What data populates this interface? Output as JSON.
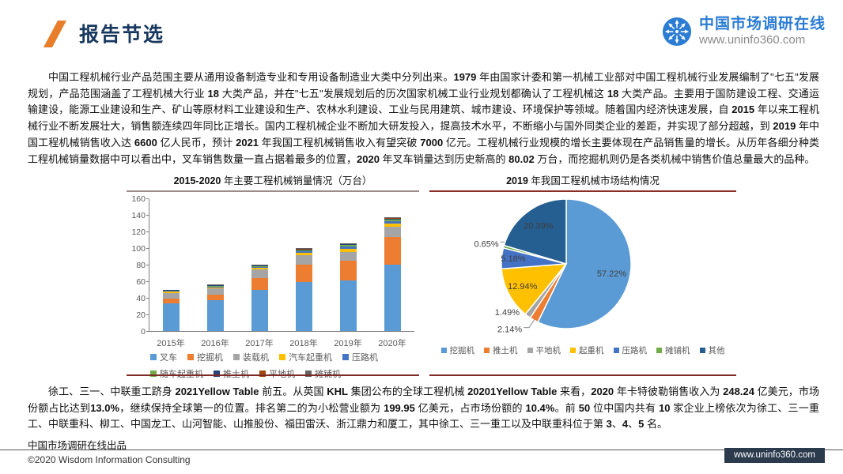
{
  "header": {
    "title": "报告节选",
    "brand_name": "中国市场调研在线",
    "brand_url": "www.uninfo360.com"
  },
  "colors": {
    "accent_orange": "#E87D2B",
    "title_navy": "#17375E",
    "brand_blue": "#2B7CD3",
    "bar_title_rule": "#9C8B88",
    "pie_title_rule": "#8B2E28",
    "card_bottom_rule": "#7E2B26",
    "footer_box_navy": "#2C3A4D"
  },
  "paragraphs": {
    "p1": [
      {
        "t": "中国工程机械行业产品范围主要从通用设备制造专业和专用设备制造业大类中分列出来。"
      },
      {
        "t": "1979",
        "b": 1
      },
      {
        "t": " 年由国家计委和第一机械工业部对中国工程机械行业发展编制了\"七五\"发展规划，产品范围涵盖了工程机械大行业 "
      },
      {
        "t": "18",
        "b": 1
      },
      {
        "t": " 大类产品，并在\"七五\"发展规划后的历次国家机械工业行业规划都确认了工程机械这 "
      },
      {
        "t": "18",
        "b": 1
      },
      {
        "t": " 大类产品。主要用于国防建设工程、交通运输建设，能源工业建设和生产、矿山等原材料工业建设和生产、农林水利建设、工业与民用建筑、城市建设、环境保护等领域。随着国内经济快速发展，自 "
      },
      {
        "t": "2015",
        "b": 1
      },
      {
        "t": " 年以来工程机械行业不断发展壮大，销售额连续四年同比正增长。国内工程机械企业不断加大研发投入，提高技术水平，不断缩小与国外同类企业的差距，并实现了部分超越，到 "
      },
      {
        "t": "2019",
        "b": 1
      },
      {
        "t": " 年中国工程机械销售收入达 "
      },
      {
        "t": "6600",
        "b": 1
      },
      {
        "t": " 亿人民币，预计 "
      },
      {
        "t": "2021",
        "b": 1
      },
      {
        "t": " 年我国工程机械销售收入有望突破 "
      },
      {
        "t": "7000",
        "b": 1
      },
      {
        "t": " 亿元。工程机械行业规模的增长主要体现在产品销售量的增长。从历年各细分种类工程机械销量数据中可以看出中，叉车销售数量一直占据着最多的位置，"
      },
      {
        "t": "2020",
        "b": 1
      },
      {
        "t": " 年叉车销量达到历史新高的 "
      },
      {
        "t": "80.02",
        "b": 1
      },
      {
        "t": " 万台，而挖掘机则仍是各类机械中销售价值总量最大的品种。"
      }
    ],
    "p2": [
      {
        "t": "徐工、三一、中联重工跻身 "
      },
      {
        "t": "2021Yellow Table",
        "b": 1
      },
      {
        "t": " 前五。从英国 "
      },
      {
        "t": "KHL",
        "b": 1
      },
      {
        "t": " 集团公布的全球工程机械 "
      },
      {
        "t": "20201Yellow Table",
        "b": 1
      },
      {
        "t": " 来看，"
      },
      {
        "t": "2020",
        "b": 1
      },
      {
        "t": " 年卡特彼勒销售收入为 "
      },
      {
        "t": "248.24",
        "b": 1
      },
      {
        "t": " 亿美元，市场份额占比达到"
      },
      {
        "t": "13.0%",
        "b": 1
      },
      {
        "t": "，继续保持全球第一的位置。排名第二的为小松营业额为 "
      },
      {
        "t": "199.95",
        "b": 1
      },
      {
        "t": " 亿美元，占市场份额的 "
      },
      {
        "t": "10.4%",
        "b": 1
      },
      {
        "t": "。前 "
      },
      {
        "t": "50",
        "b": 1
      },
      {
        "t": " 位中国内共有 "
      },
      {
        "t": "10",
        "b": 1
      },
      {
        "t": " 家企业上榜依次为徐工、三一重工、中联重科、柳工、中国龙工、山河智能、山推股份、福田雷沃、浙江鼎力和厦工，其中徐工、三一重工以及中联重科位于第 "
      },
      {
        "t": "3",
        "b": 1
      },
      {
        "t": "、"
      },
      {
        "t": "4",
        "b": 1
      },
      {
        "t": "、"
      },
      {
        "t": "5",
        "b": 1
      },
      {
        "t": " 名。"
      }
    ]
  },
  "chart_data": [
    {
      "type": "bar",
      "stacked": true,
      "title": "2015-2020 年主要工程机械销量情况（万台）",
      "xlabel": "",
      "ylabel": "万台",
      "categories": [
        "2015年",
        "2016年",
        "2017年",
        "2018年",
        "2019年",
        "2020年"
      ],
      "series": [
        {
          "name": "叉车",
          "color": "#5B9BD5",
          "values": [
            33,
            37,
            50,
            59,
            61,
            80
          ]
        },
        {
          "name": "挖掘机",
          "color": "#ED7D31",
          "values": [
            6,
            7,
            14,
            21,
            23.5,
            33
          ]
        },
        {
          "name": "装载机",
          "color": "#A5A5A5",
          "values": [
            7,
            7,
            10,
            11,
            11,
            13
          ]
        },
        {
          "name": "汽车起重机",
          "color": "#FFC000",
          "values": [
            1.5,
            1.5,
            2.5,
            3,
            3.5,
            4
          ]
        },
        {
          "name": "压路机",
          "color": "#4472C4",
          "values": [
            1,
            1,
            1,
            2,
            2.5,
            2.5
          ]
        },
        {
          "name": "随车起重机",
          "color": "#70AD47",
          "values": [
            0.5,
            1,
            1,
            1.5,
            2,
            2
          ]
        },
        {
          "name": "推土机",
          "color": "#264478",
          "values": [
            0.5,
            0.5,
            0.5,
            1,
            1,
            1
          ]
        },
        {
          "name": "平地机",
          "color": "#9E480E",
          "values": [
            0.3,
            0.3,
            0.4,
            0.5,
            0.5,
            0.5
          ]
        },
        {
          "name": "摊铺机",
          "color": "#636363",
          "values": [
            0.2,
            0.7,
            0.6,
            1,
            1,
            1
          ]
        }
      ],
      "ylim": [
        0,
        160
      ],
      "ytick_step": 20,
      "grid": false,
      "legend_position": "bottom"
    },
    {
      "type": "pie",
      "title": "2019 年我国工程机械市场结构情况",
      "labels": [
        "挖掘机",
        "推土机",
        "平地机",
        "起重机",
        "压路机",
        "摊铺机",
        "其他"
      ],
      "values": [
        57.22,
        2.14,
        1.49,
        12.94,
        5.18,
        0.65,
        20.39
      ],
      "colors": [
        "#5B9BD5",
        "#ED7D31",
        "#A5A5A5",
        "#FFC000",
        "#4472C4",
        "#70AD47",
        "#255E91"
      ],
      "data_labels": [
        "57.22%",
        "2.14%",
        "1.49%",
        "12.94%",
        "5.18%",
        "0.65%",
        "20.39%"
      ],
      "start_angle": "12-oclock-clockwise",
      "legend_position": "bottom"
    }
  ],
  "footer": {
    "producer": "中国市场调研在线出品",
    "copyright": "©2020 Wisdom Information Consulting",
    "url": "www.uninfo360.com"
  }
}
